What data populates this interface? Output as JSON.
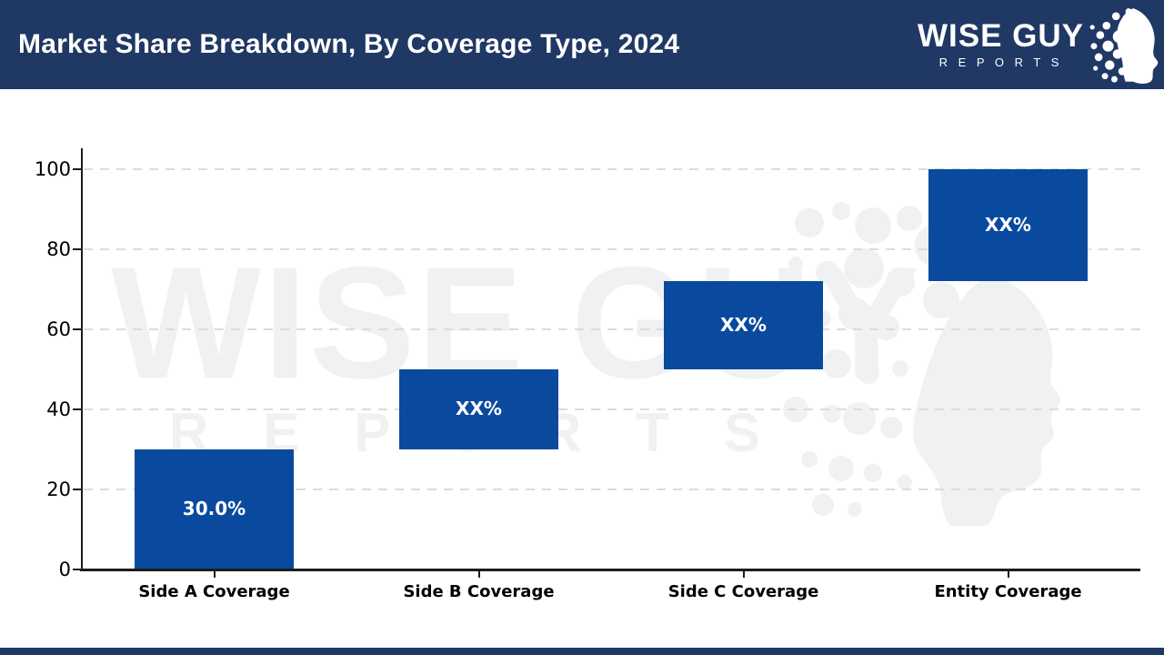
{
  "header": {
    "title": "Market Share Breakdown, By Coverage Type, 2024",
    "logo": {
      "line1": "WISE GUY",
      "line2": "R E P O R T S"
    }
  },
  "watermark": {
    "line1": "WISE GUY",
    "line2": "REPORTS"
  },
  "chart_data": {
    "type": "bar",
    "subtype": "waterfall",
    "title": "Market Share Breakdown, By Coverage Type, 2024",
    "categories": [
      "Side A Coverage",
      "Side B Coverage",
      "Side C Coverage",
      "Entity Coverage"
    ],
    "segments": [
      {
        "category": "Side A Coverage",
        "start": 0,
        "end": 30,
        "label": "30.0%"
      },
      {
        "category": "Side B Coverage",
        "start": 30,
        "end": 50,
        "label": "XX%"
      },
      {
        "category": "Side C Coverage",
        "start": 50,
        "end": 72,
        "label": "XX%"
      },
      {
        "category": "Entity Coverage",
        "start": 72,
        "end": 100,
        "label": "XX%"
      }
    ],
    "ylim": [
      0,
      100
    ],
    "yticks": [
      0,
      20,
      40,
      60,
      80,
      100
    ],
    "xlabel": "",
    "ylabel": "",
    "grid": "horizontal-dashed",
    "legend": "none"
  },
  "colors": {
    "header_bg": "#1F3864",
    "bar": "#0A4A9E",
    "grid": "#dcdcdc",
    "axis": "#1c1c1c",
    "watermark": "#f0f1f3",
    "bar_label_text": "#ffffff",
    "title_text": "#ffffff"
  }
}
